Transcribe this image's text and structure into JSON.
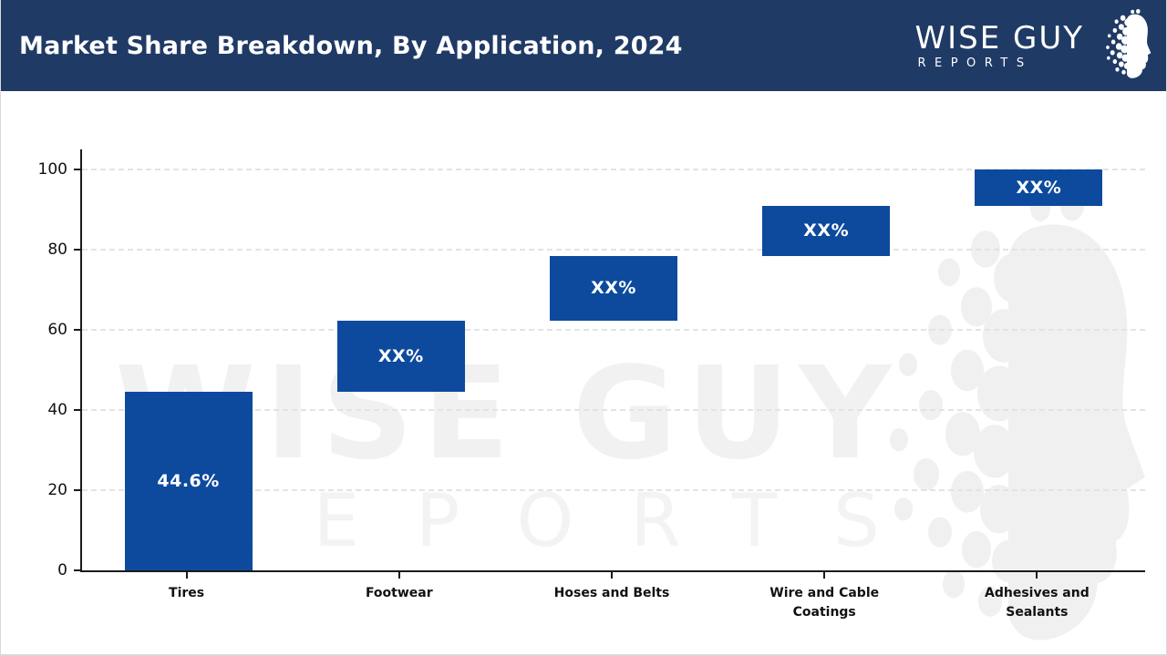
{
  "header": {
    "title": "Market Share Breakdown, By Application, 2024",
    "background_color": "#203a66",
    "logo": {
      "line1": "WISE GUY",
      "line2": "REPORTS",
      "icon": "dotted-head-profile"
    }
  },
  "watermark": {
    "line1": "WISE GUY",
    "line2": "REPORTS",
    "icon": "dotted-head-profile",
    "color": "#f1f1f1"
  },
  "chart_data": {
    "type": "bar",
    "subtype": "waterfall",
    "title": "Market Share Breakdown, By Application, 2024",
    "categories": [
      "Tires",
      "Footwear",
      "Hoses and Belts",
      "Wire and Cable\nCoatings",
      "Adhesives and\nSealants"
    ],
    "bars": [
      {
        "category": "Tires",
        "start": 0,
        "end": 44.6,
        "label": "44.6%"
      },
      {
        "category": "Footwear",
        "start": 44.6,
        "end": 62.3,
        "label": "XX%"
      },
      {
        "category": "Hoses and Belts",
        "start": 62.3,
        "end": 78.4,
        "label": "XX%"
      },
      {
        "category": "Wire and Cable Coatings",
        "start": 78.4,
        "end": 91.0,
        "label": "XX%"
      },
      {
        "category": "Adhesives and Sealants",
        "start": 91.0,
        "end": 100.0,
        "label": "XX%"
      }
    ],
    "xlabel": "",
    "ylabel": "",
    "yticks": [
      0,
      20,
      40,
      60,
      80,
      100
    ],
    "ylim": [
      0,
      105
    ],
    "grid": "horizontal-dashed",
    "legend": "none",
    "bar_color": "#0d4a9d",
    "bar_label_color": "#ffffff"
  }
}
